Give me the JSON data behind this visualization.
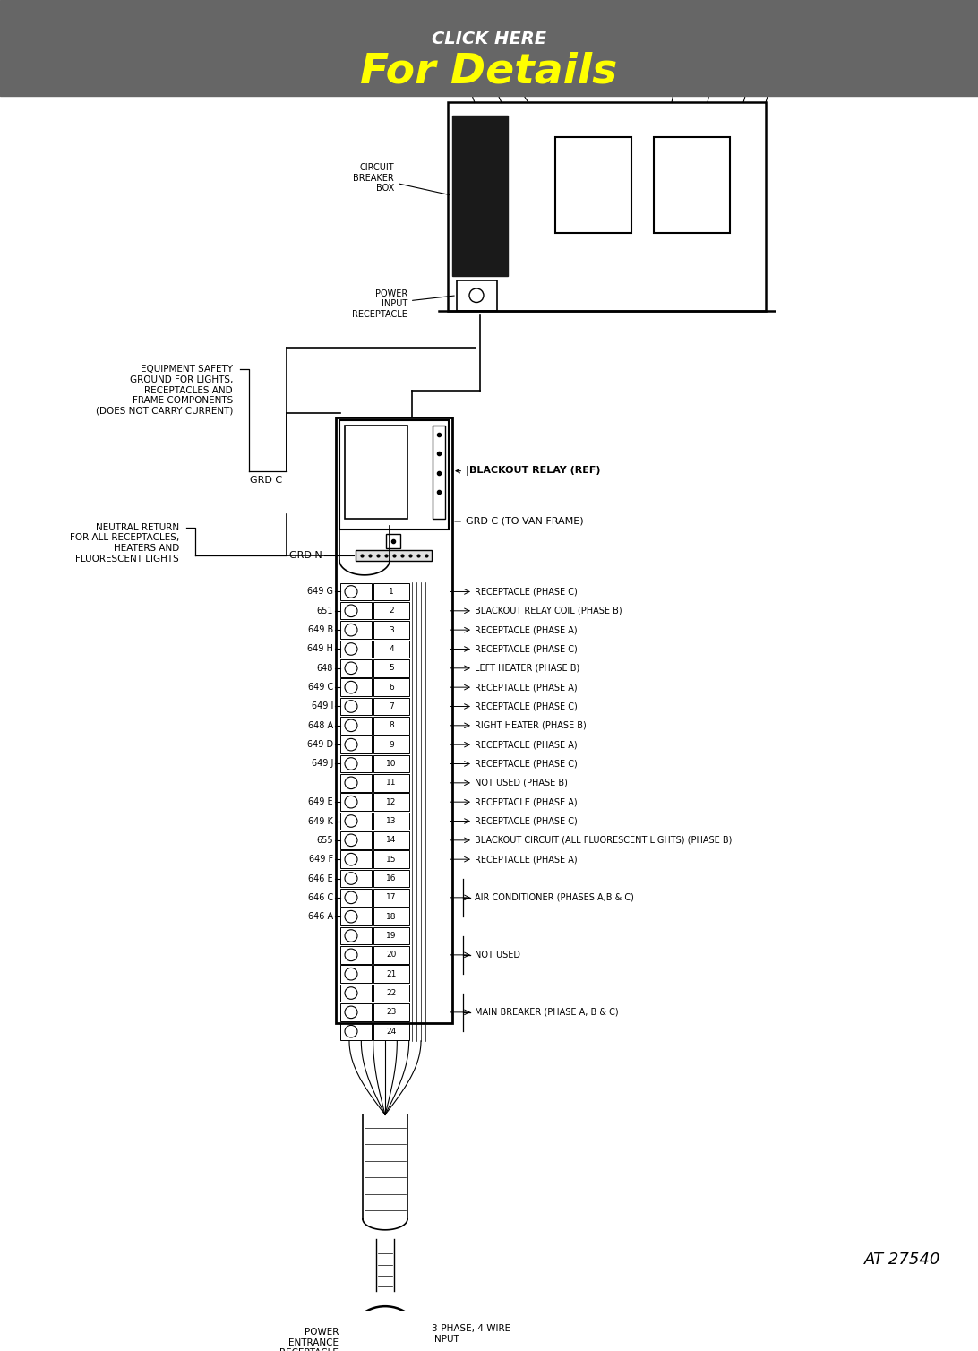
{
  "bg_header_color": "#666666",
  "bg_main_color": "#ffffff",
  "click_here_text": "CLICK HERE",
  "for_details_text": "For Details",
  "click_here_color": "#ffffff",
  "for_details_color": "#ffff00",
  "diagram_title": "AT 27540",
  "breaker_rows": [
    {
      "num": 1,
      "left_label": "649 G",
      "right_label": "RECEPTACLE (PHASE C)",
      "has_wire": true
    },
    {
      "num": 2,
      "left_label": "651",
      "right_label": "BLACKOUT RELAY COIL (PHASE B)",
      "has_wire": true
    },
    {
      "num": 3,
      "left_label": "649 B",
      "right_label": "RECEPTACLE (PHASE A)",
      "has_wire": true
    },
    {
      "num": 4,
      "left_label": "649 H",
      "right_label": "RECEPTACLE (PHASE C)",
      "has_wire": true
    },
    {
      "num": 5,
      "left_label": "648",
      "right_label": "LEFT HEATER (PHASE B)",
      "has_wire": true
    },
    {
      "num": 6,
      "left_label": "649 C",
      "right_label": "RECEPTACLE (PHASE A)",
      "has_wire": true
    },
    {
      "num": 7,
      "left_label": "649 I",
      "right_label": "RECEPTACLE (PHASE C)",
      "has_wire": true
    },
    {
      "num": 8,
      "left_label": "648 A",
      "right_label": "RIGHT HEATER (PHASE B)",
      "has_wire": true
    },
    {
      "num": 9,
      "left_label": "649 D",
      "right_label": "RECEPTACLE (PHASE A)",
      "has_wire": true
    },
    {
      "num": 10,
      "left_label": "649 J",
      "right_label": "RECEPTACLE (PHASE C)",
      "has_wire": true
    },
    {
      "num": 11,
      "left_label": "",
      "right_label": "NOT USED (PHASE B)",
      "has_wire": true
    },
    {
      "num": 12,
      "left_label": "649 E",
      "right_label": "RECEPTACLE (PHASE A)",
      "has_wire": true
    },
    {
      "num": 13,
      "left_label": "649 K",
      "right_label": "RECEPTACLE (PHASE C)",
      "has_wire": true
    },
    {
      "num": 14,
      "left_label": "655",
      "right_label": "BLACKOUT CIRCUIT (ALL FLUORESCENT LIGHTS) (PHASE B)",
      "has_wire": true
    },
    {
      "num": 15,
      "left_label": "649 F",
      "right_label": "RECEPTACLE (PHASE A)",
      "has_wire": true
    },
    {
      "num": 16,
      "left_label": "646 E",
      "right_label": "",
      "has_wire": true
    },
    {
      "num": 17,
      "left_label": "646 C",
      "right_label": "AIR CONDITIONER (PHASES A,B & C)",
      "has_wire": true
    },
    {
      "num": 18,
      "left_label": "646 A",
      "right_label": "",
      "has_wire": true
    },
    {
      "num": 19,
      "left_label": "",
      "right_label": "",
      "has_wire": false
    },
    {
      "num": 20,
      "left_label": "",
      "right_label": "NOT USED",
      "has_wire": false
    },
    {
      "num": 21,
      "left_label": "",
      "right_label": "",
      "has_wire": false
    },
    {
      "num": 22,
      "left_label": "",
      "right_label": "",
      "has_wire": false
    },
    {
      "num": 23,
      "left_label": "",
      "right_label": "MAIN BREAKER (PHASE A, B & C)",
      "has_wire": false
    },
    {
      "num": 24,
      "left_label": "",
      "right_label": "",
      "has_wire": false
    }
  ]
}
